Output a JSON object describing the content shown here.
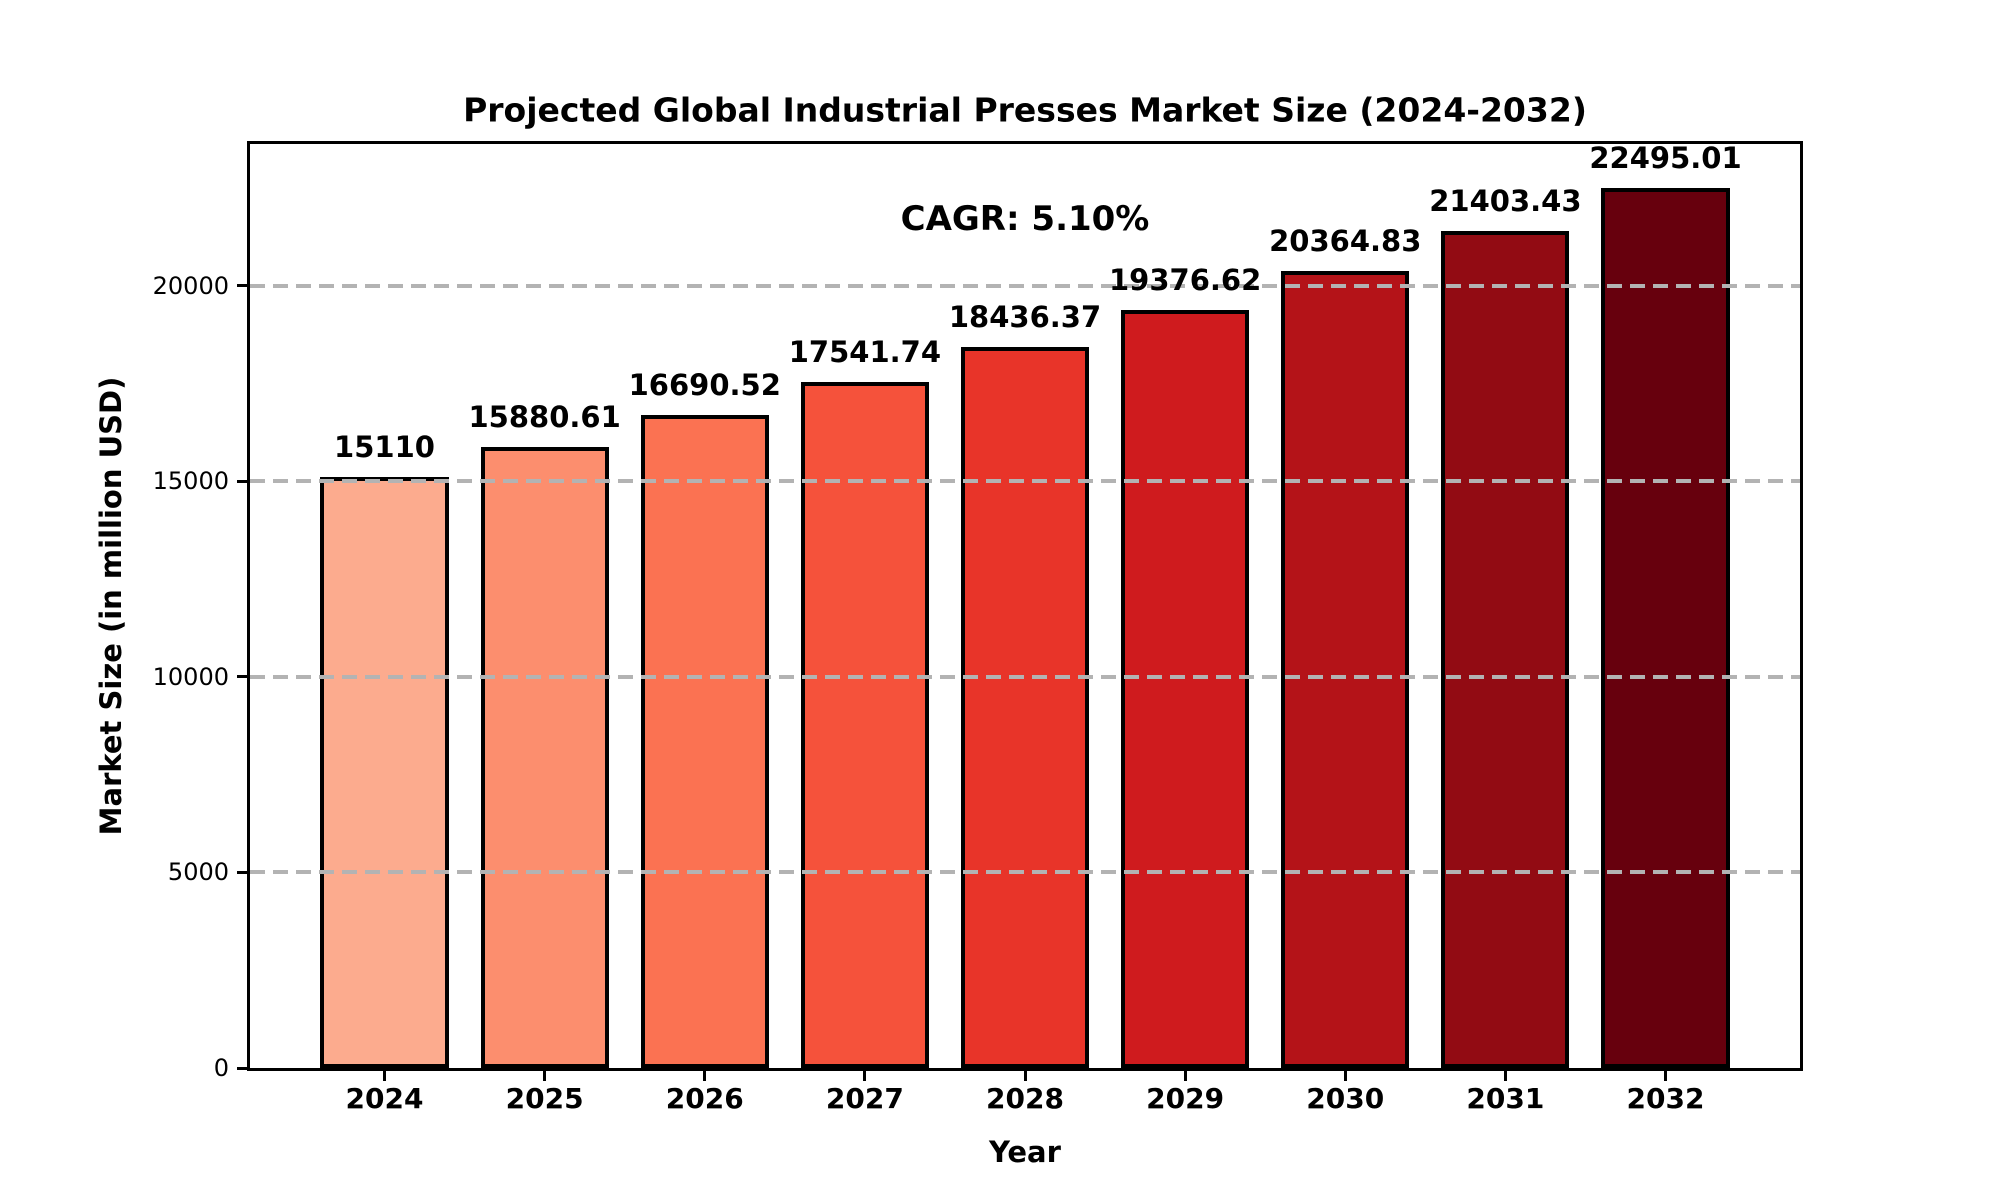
{
  "chart_data": {
    "type": "bar",
    "title": "Projected Global Industrial Presses Market Size (2024-2032)",
    "annotation": "CAGR: 5.10%",
    "xlabel": "Year",
    "ylabel": "Market Size (in million USD)",
    "categories": [
      "2024",
      "2025",
      "2026",
      "2027",
      "2028",
      "2029",
      "2030",
      "2031",
      "2032"
    ],
    "values": [
      15110,
      15880.61,
      16690.52,
      17541.74,
      18436.37,
      19376.62,
      20364.83,
      21403.43,
      22495.01
    ],
    "bar_labels": [
      "15110",
      "15880.61",
      "16690.52",
      "17541.74",
      "18436.37",
      "19376.62",
      "20364.83",
      "21403.43",
      "22495.01"
    ],
    "bar_colors": [
      "#fcab8e",
      "#fc8e6e",
      "#fb7252",
      "#f5523b",
      "#e83429",
      "#cf1b1e",
      "#b41318",
      "#920b13",
      "#67000d"
    ],
    "bar_edge_color": "#000000",
    "ylim": [
      0,
      23620
    ],
    "yticks": [
      0,
      5000,
      10000,
      15000,
      20000
    ],
    "ytick_labels": [
      "0",
      "5000",
      "10000",
      "15000",
      "20000"
    ],
    "grid": "horizontal dashed gray lines drawn above bars",
    "grid_color": "#b3b3b3",
    "legend": "none"
  }
}
